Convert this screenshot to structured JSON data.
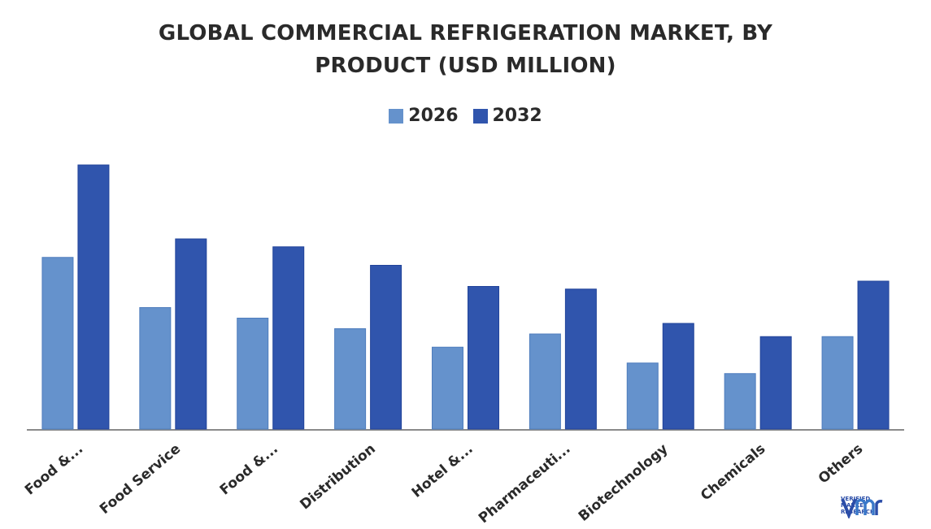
{
  "title_line1": "GLOBAL COMMERCIAL REFRIGERATION MARKET, BY",
  "title_line2": "PRODUCT (USD MILLION)",
  "colors": {
    "series_2026": "#6592cc",
    "series_2032": "#3055ad",
    "axis": "#8a8a8a"
  },
  "logo": {
    "line1": "VERIFIED",
    "line2": "MARKET",
    "line3": "RESEARCH"
  },
  "chart_data": {
    "type": "bar",
    "title": "GLOBAL COMMERCIAL REFRIGERATION MARKET, BY PRODUCT (USD MILLION)",
    "categories": [
      "Food &...",
      "Food Service",
      "Food &...",
      "Distribution",
      "Hotel &...",
      "Pharmaceuti...",
      "Biotechnology",
      "Chemicals",
      "Others"
    ],
    "series": [
      {
        "name": "2026",
        "values": [
          65,
          46,
          42,
          38,
          31,
          36,
          25,
          21,
          35
        ]
      },
      {
        "name": "2032",
        "values": [
          100,
          72,
          69,
          62,
          54,
          53,
          40,
          35,
          56
        ]
      }
    ],
    "ylim": [
      0,
      100
    ],
    "grid": false,
    "legend": "top-center"
  }
}
